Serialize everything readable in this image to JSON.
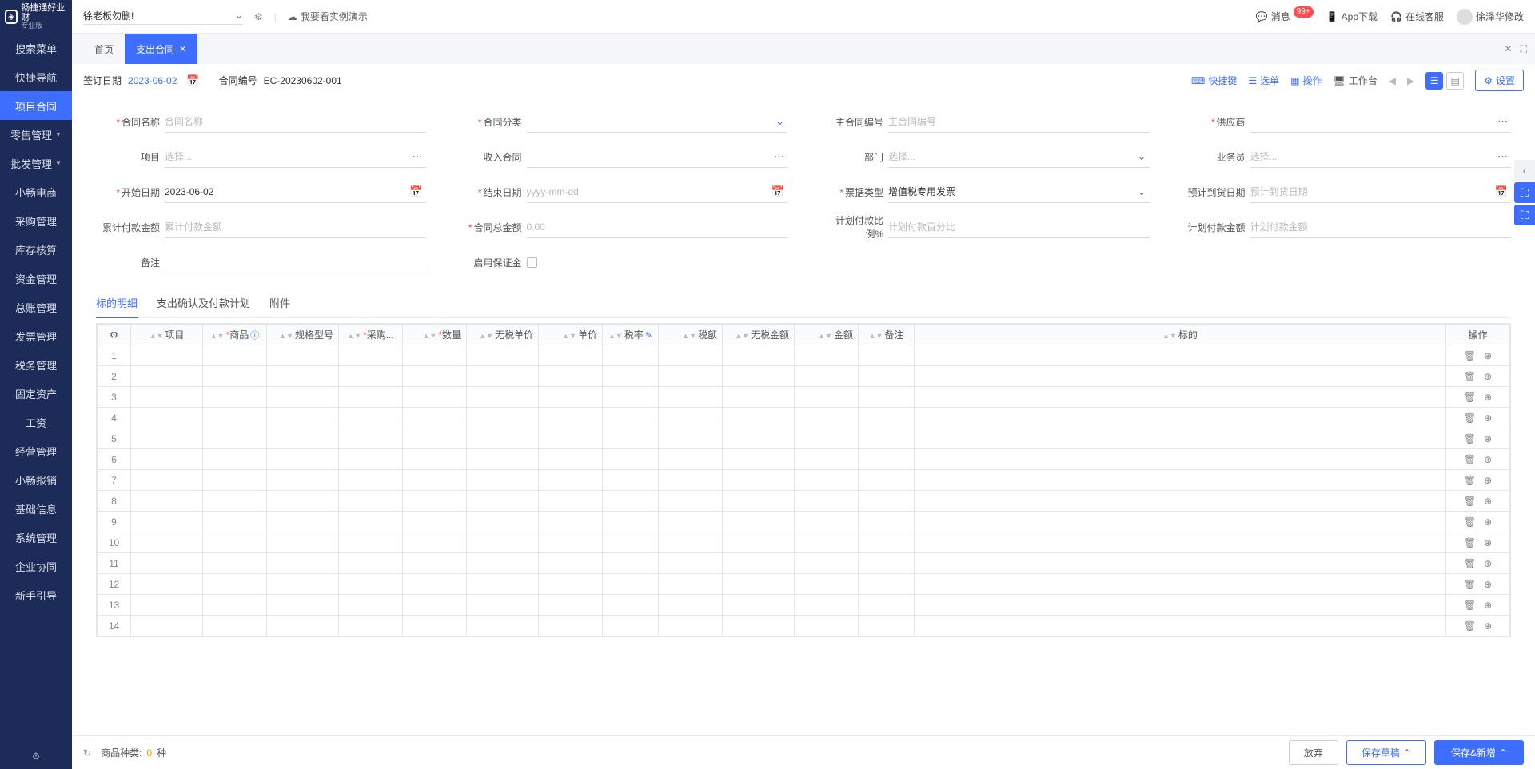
{
  "brand": {
    "name": "畅捷通好业财",
    "edition": "专业版"
  },
  "sidebar": {
    "items": [
      {
        "label": "搜索菜单",
        "expandable": false
      },
      {
        "label": "快捷导航",
        "expandable": false
      },
      {
        "label": "项目合同",
        "expandable": false
      },
      {
        "label": "零售管理",
        "expandable": true
      },
      {
        "label": "批发管理",
        "expandable": true
      },
      {
        "label": "小畅电商",
        "expandable": false
      },
      {
        "label": "采购管理",
        "expandable": false
      },
      {
        "label": "库存核算",
        "expandable": false
      },
      {
        "label": "资金管理",
        "expandable": false
      },
      {
        "label": "总账管理",
        "expandable": false
      },
      {
        "label": "发票管理",
        "expandable": false
      },
      {
        "label": "税务管理",
        "expandable": false
      },
      {
        "label": "固定资产",
        "expandable": false
      },
      {
        "label": "工资",
        "expandable": false
      },
      {
        "label": "经营管理",
        "expandable": false
      },
      {
        "label": "小畅报销",
        "expandable": false
      },
      {
        "label": "基础信息",
        "expandable": false
      },
      {
        "label": "系统管理",
        "expandable": false
      },
      {
        "label": "企业协同",
        "expandable": false
      },
      {
        "label": "新手引导",
        "expandable": false
      }
    ],
    "active_index": 2
  },
  "topbar": {
    "company": "徐老板勿删!",
    "demo": "我要看实例演示",
    "msg": "消息",
    "msg_badge": "99+",
    "app": "App下载",
    "service": "在线客服",
    "user": "徐泽华修改"
  },
  "tabs": {
    "home": "首页",
    "active": "支出合同"
  },
  "toolbar": {
    "sign_date_label": "签订日期",
    "sign_date": "2023-06-02",
    "code_label": "合同编号",
    "code": "EC-20230602-001",
    "shortcut": "快捷键",
    "select_bill": "选单",
    "operate": "操作",
    "workbench": "工作台",
    "setting": "设置"
  },
  "form": {
    "name_label": "合同名称",
    "name_ph": "合同名称",
    "cat_label": "合同分类",
    "main_code_label": "主合同编号",
    "main_code_ph": "主合同编号",
    "supplier_label": "供应商",
    "project_label": "项目",
    "project_ph": "选择...",
    "income_label": "收入合同",
    "dept_label": "部门",
    "dept_ph": "选择...",
    "sales_label": "业务员",
    "sales_ph": "选择...",
    "start_label": "开始日期",
    "start_val": "2023-06-02",
    "end_label": "结束日期",
    "end_ph": "yyyy-mm-dd",
    "invoice_label": "票据类型",
    "invoice_val": "增值税专用发票",
    "expect_label": "预计到货日期",
    "expect_ph": "预计到货日期",
    "acc_pay_label": "累计付款金额",
    "acc_pay_ph": "累计付款金额",
    "total_label": "合同总金额",
    "total_ph": "0.00",
    "plan_pct_label": "计划付款比例%",
    "plan_pct_ph": "计划付款百分比",
    "plan_amt_label": "计划付款金额",
    "plan_amt_ph": "计划付款金额",
    "remark_label": "备注",
    "deposit_label": "启用保证金"
  },
  "sub_tabs": {
    "t1": "标的明细",
    "t2": "支出确认及付款计划",
    "t3": "附件"
  },
  "table": {
    "cols": {
      "project": "项目",
      "product": "商品",
      "spec": "规格型号",
      "purchase": "采购...",
      "qty": "数量",
      "price_notax": "无税单价",
      "price": "单价",
      "tax_rate": "税率",
      "tax_amt": "税额",
      "amt_notax": "无税金额",
      "amt": "金额",
      "remark": "备注",
      "subject": "标的",
      "op": "操作"
    },
    "row_count": 14
  },
  "footer": {
    "kinds_label": "商品种类:",
    "kinds_cnt": "0",
    "kinds_unit": "种",
    "abandon": "放弃",
    "draft": "保存草稿",
    "save_new": "保存&新增"
  }
}
